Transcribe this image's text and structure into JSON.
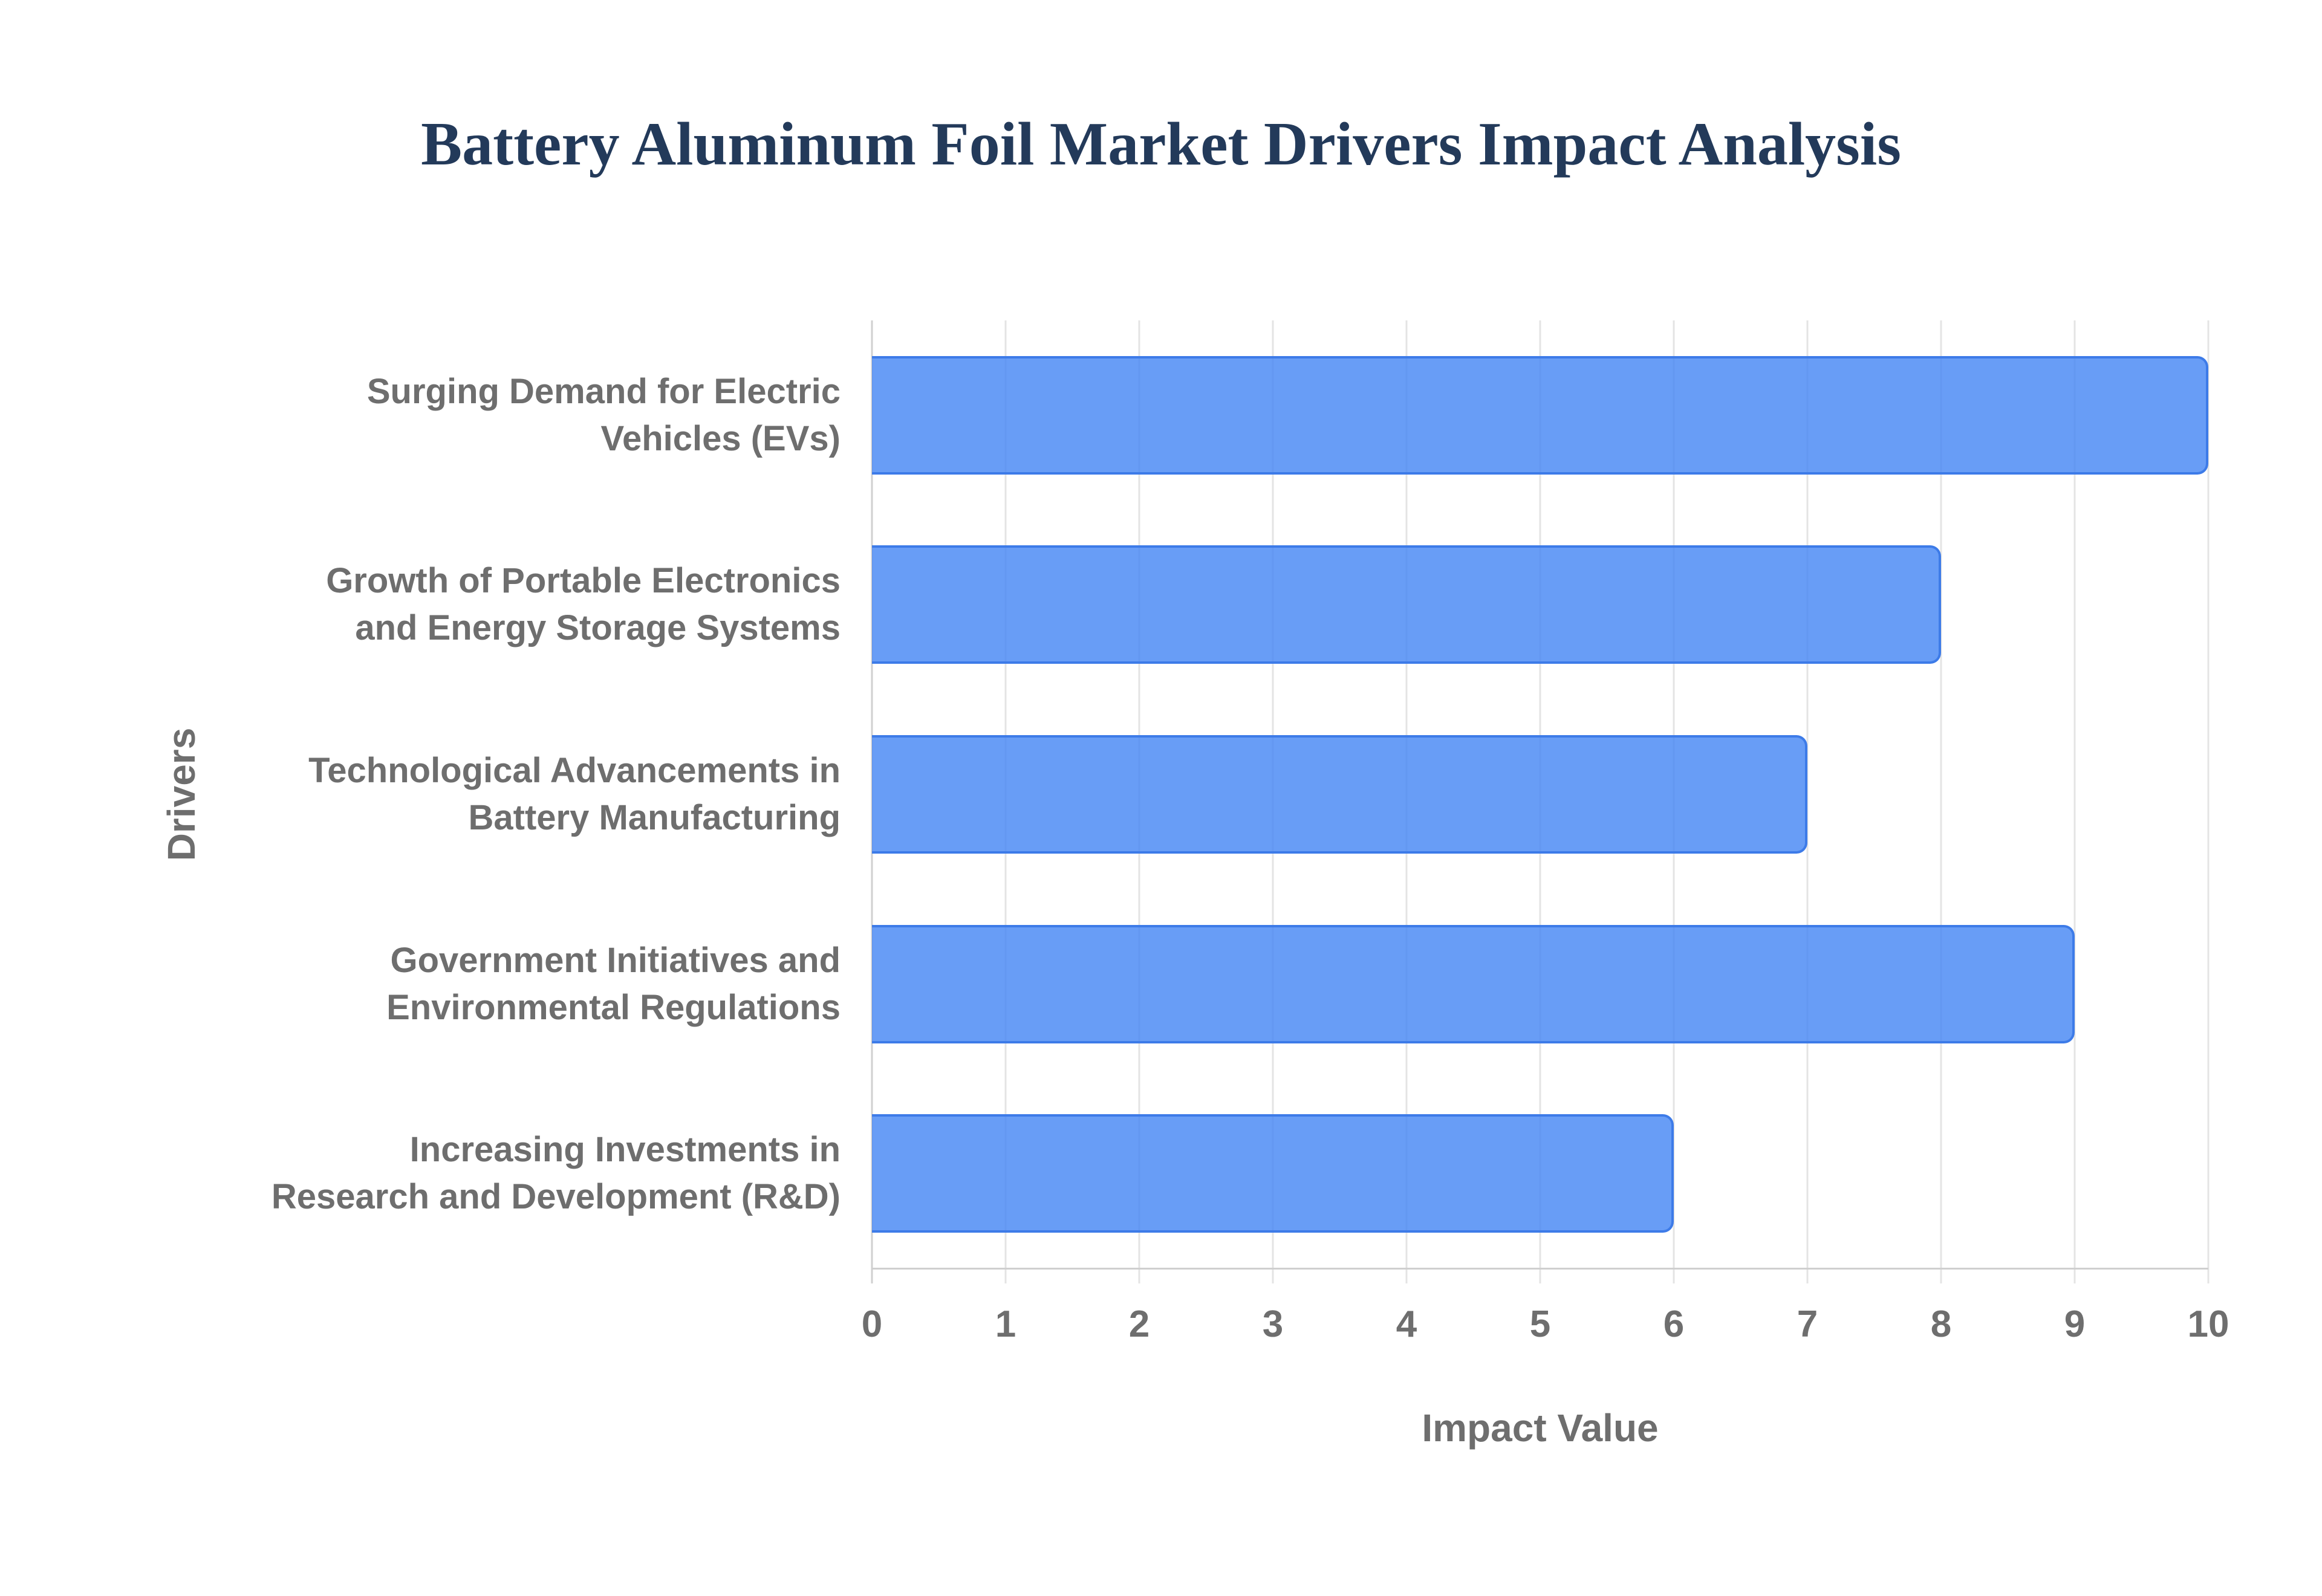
{
  "page": {
    "background": "#ffffff"
  },
  "chart_data": {
    "type": "bar",
    "orientation": "horizontal",
    "title": "Battery Aluminum Foil Market Drivers Impact Analysis",
    "xlabel": "Impact Value",
    "ylabel": "Drivers",
    "categories": [
      "Surging Demand for Electric Vehicles (EVs)",
      "Growth of Portable Electronics and Energy Storage Systems",
      "Technological Advancements in Battery Manufacturing",
      "Government Initiatives and Environmental Regulations",
      "Increasing Investments in Research and Development (R&D)"
    ],
    "category_label_lines": [
      [
        "Surging Demand for Electric",
        "Vehicles (EVs)"
      ],
      [
        "Growth of Portable Electronics",
        "and Energy Storage Systems"
      ],
      [
        "Technological Advancements in",
        "Battery Manufacturing"
      ],
      [
        "Government Initiatives and",
        "Environmental Regulations"
      ],
      [
        "Increasing Investments in",
        "Research and Development (R&D)"
      ]
    ],
    "values": [
      10,
      8,
      7,
      9,
      6
    ],
    "xlim": [
      0,
      10
    ],
    "x_ticks": [
      0,
      1,
      2,
      3,
      4,
      5,
      6,
      7,
      8,
      9,
      10
    ],
    "grid": true,
    "legend": false,
    "colors": {
      "bar_fill": "rgba(66,133,244,0.8)",
      "bar_border": "#3d7be8",
      "gridline": "#e4e4e4",
      "axis_line": "#d0d0d0",
      "title_text": "#233a5a",
      "axis_text": "#6e6e6e"
    }
  }
}
